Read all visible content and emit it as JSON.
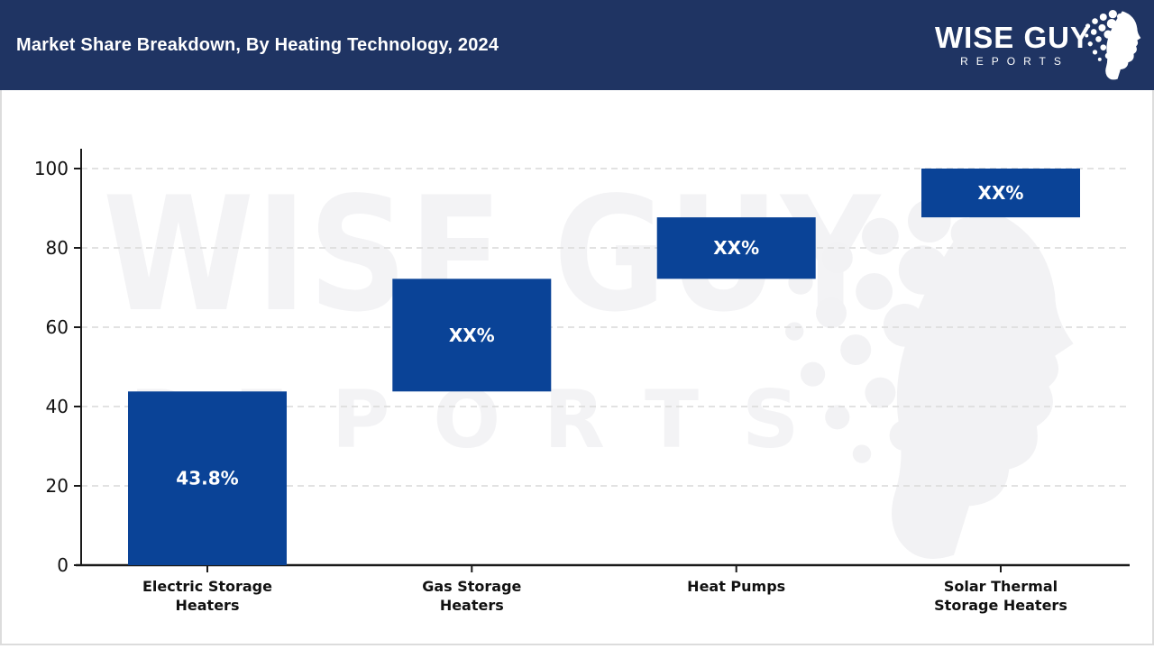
{
  "header": {
    "title": "Market Share Breakdown, By Heating Technology, 2024",
    "logo": {
      "name": "WISE GUY",
      "sub": "REPORTS"
    }
  },
  "watermark": {
    "line1": "WISE GUY",
    "line2": "REPORTS"
  },
  "colors": {
    "header_bg": "#1f3463",
    "bar": "#0a4397",
    "bar_label": "#ffffff",
    "grid": "#d9d9d9",
    "axis": "#1a1a1a",
    "tick_label": "#111111",
    "watermark": "#f3f3f5"
  },
  "chart_data": {
    "type": "bar",
    "subtype": "waterfall",
    "title": "Market Share Breakdown, By Heating Technology, 2024",
    "categories": [
      [
        "Electric Storage",
        "Heaters"
      ],
      [
        "Gas Storage",
        "Heaters"
      ],
      [
        "Heat Pumps"
      ],
      [
        "Solar Thermal",
        "Storage Heaters"
      ]
    ],
    "segments": [
      {
        "start": 0,
        "end": 43.8,
        "label": "43.8%"
      },
      {
        "start": 43.8,
        "end": 72.2,
        "label": "XX%"
      },
      {
        "start": 72.2,
        "end": 87.7,
        "label": "XX%"
      },
      {
        "start": 87.7,
        "end": 100,
        "label": "XX%"
      }
    ],
    "yticks": [
      0,
      20,
      40,
      60,
      80,
      100
    ],
    "ylim": [
      0,
      105
    ],
    "xlabel": "",
    "ylabel": "",
    "grid": "horizontal-dashed",
    "legend": "none"
  }
}
